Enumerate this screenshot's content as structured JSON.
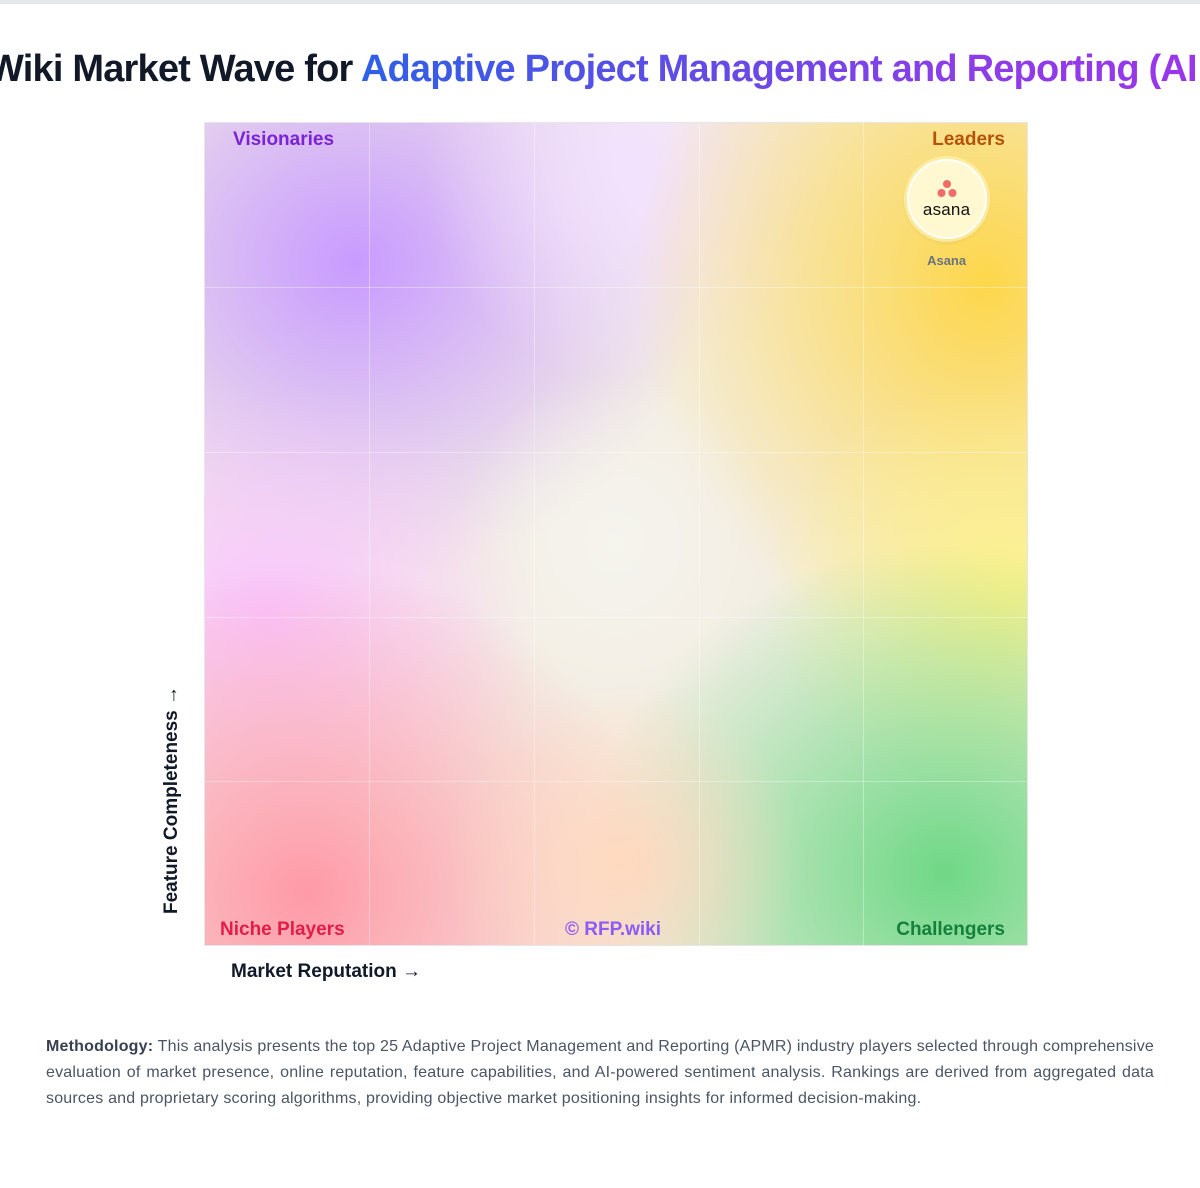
{
  "header": {
    "title_plain": "Wiki Market Wave for ",
    "title_highlight": "Adaptive Project Management and Reporting (AI"
  },
  "chart_data": {
    "type": "scatter",
    "title": "Wiki Market Wave for Adaptive Project Management and Reporting (AI",
    "xlabel": "Market Reputation →",
    "ylabel": "Feature Completeness →",
    "xlim": [
      0,
      100
    ],
    "ylim": [
      0,
      100
    ],
    "grid": true,
    "quadrants": {
      "top_left": "Visionaries",
      "top_right": "Leaders",
      "bottom_left": "Niche Players",
      "bottom_right": "Challengers"
    },
    "watermark": "© RFP.wiki",
    "points": [
      {
        "name": "Asana",
        "logo_text": "asana",
        "x": 90,
        "y": 91
      }
    ]
  },
  "colors": {
    "visionaries": "#7c22d6",
    "leaders": "#b45309",
    "niche": "#e11d48",
    "challengers": "#15803d",
    "watermark": "#8b5cf6",
    "asana_dots": "#f06a6a"
  },
  "methodology": {
    "label": "Methodology:",
    "text": " This analysis presents the top 25 Adaptive Project Management and Reporting (APMR) industry players selected through comprehensive evaluation of market presence, online reputation, feature capabilities, and AI-powered sentiment analysis. Rankings are derived from aggregated data sources and proprietary scoring algorithms, providing objective market positioning insights for informed decision-making."
  }
}
